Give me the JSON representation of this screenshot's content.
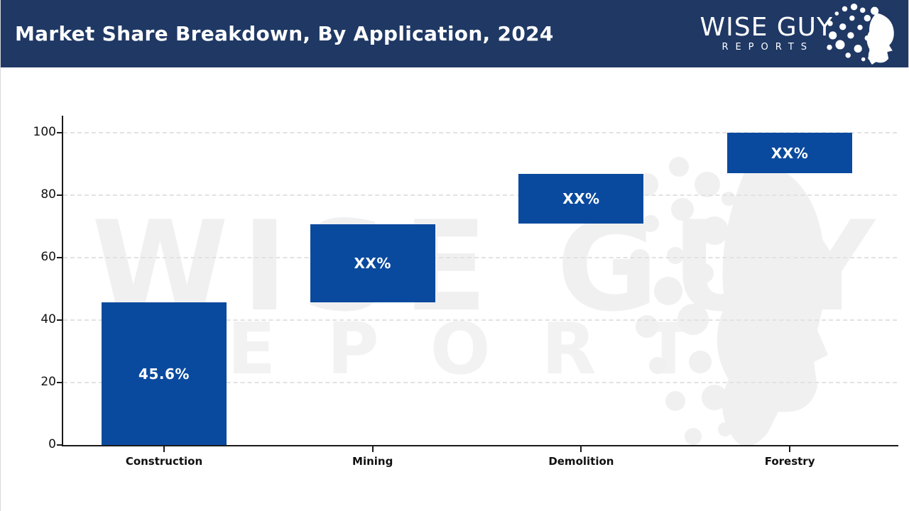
{
  "header": {
    "title": "Market Share Breakdown, By Application, 2024",
    "logo": {
      "line1": "WISE GUY",
      "line2": "REPORTS"
    }
  },
  "watermark": {
    "line1": "WISE GUY",
    "line2": "REPORTS"
  },
  "colors": {
    "header_bg": "#1f3864",
    "bar": "#0a4a9e",
    "bar_label": "#ffffff",
    "grid": "#e2e2e2",
    "axis": "#1a1a1a",
    "watermark": "#f0f0f1"
  },
  "chart_data": {
    "type": "bar",
    "subtype": "waterfall",
    "title": "Market Share Breakdown, By Application, 2024",
    "categories": [
      "Construction",
      "Mining",
      "Demolition",
      "Forestry"
    ],
    "segments": [
      {
        "category": "Construction",
        "start": 0,
        "end": 45.6,
        "label": "45.6%"
      },
      {
        "category": "Mining",
        "start": 45.6,
        "end": 70.6,
        "label": "XX%"
      },
      {
        "category": "Demolition",
        "start": 70.9,
        "end": 86.9,
        "label": "XX%"
      },
      {
        "category": "Forestry",
        "start": 87.0,
        "end": 100.0,
        "label": "XX%"
      }
    ],
    "yticks": [
      0,
      20,
      40,
      60,
      80,
      100
    ],
    "ylim": [
      0,
      105
    ],
    "xlabel": "",
    "ylabel": "",
    "grid": "horizontal-dashed",
    "legend": "none"
  }
}
